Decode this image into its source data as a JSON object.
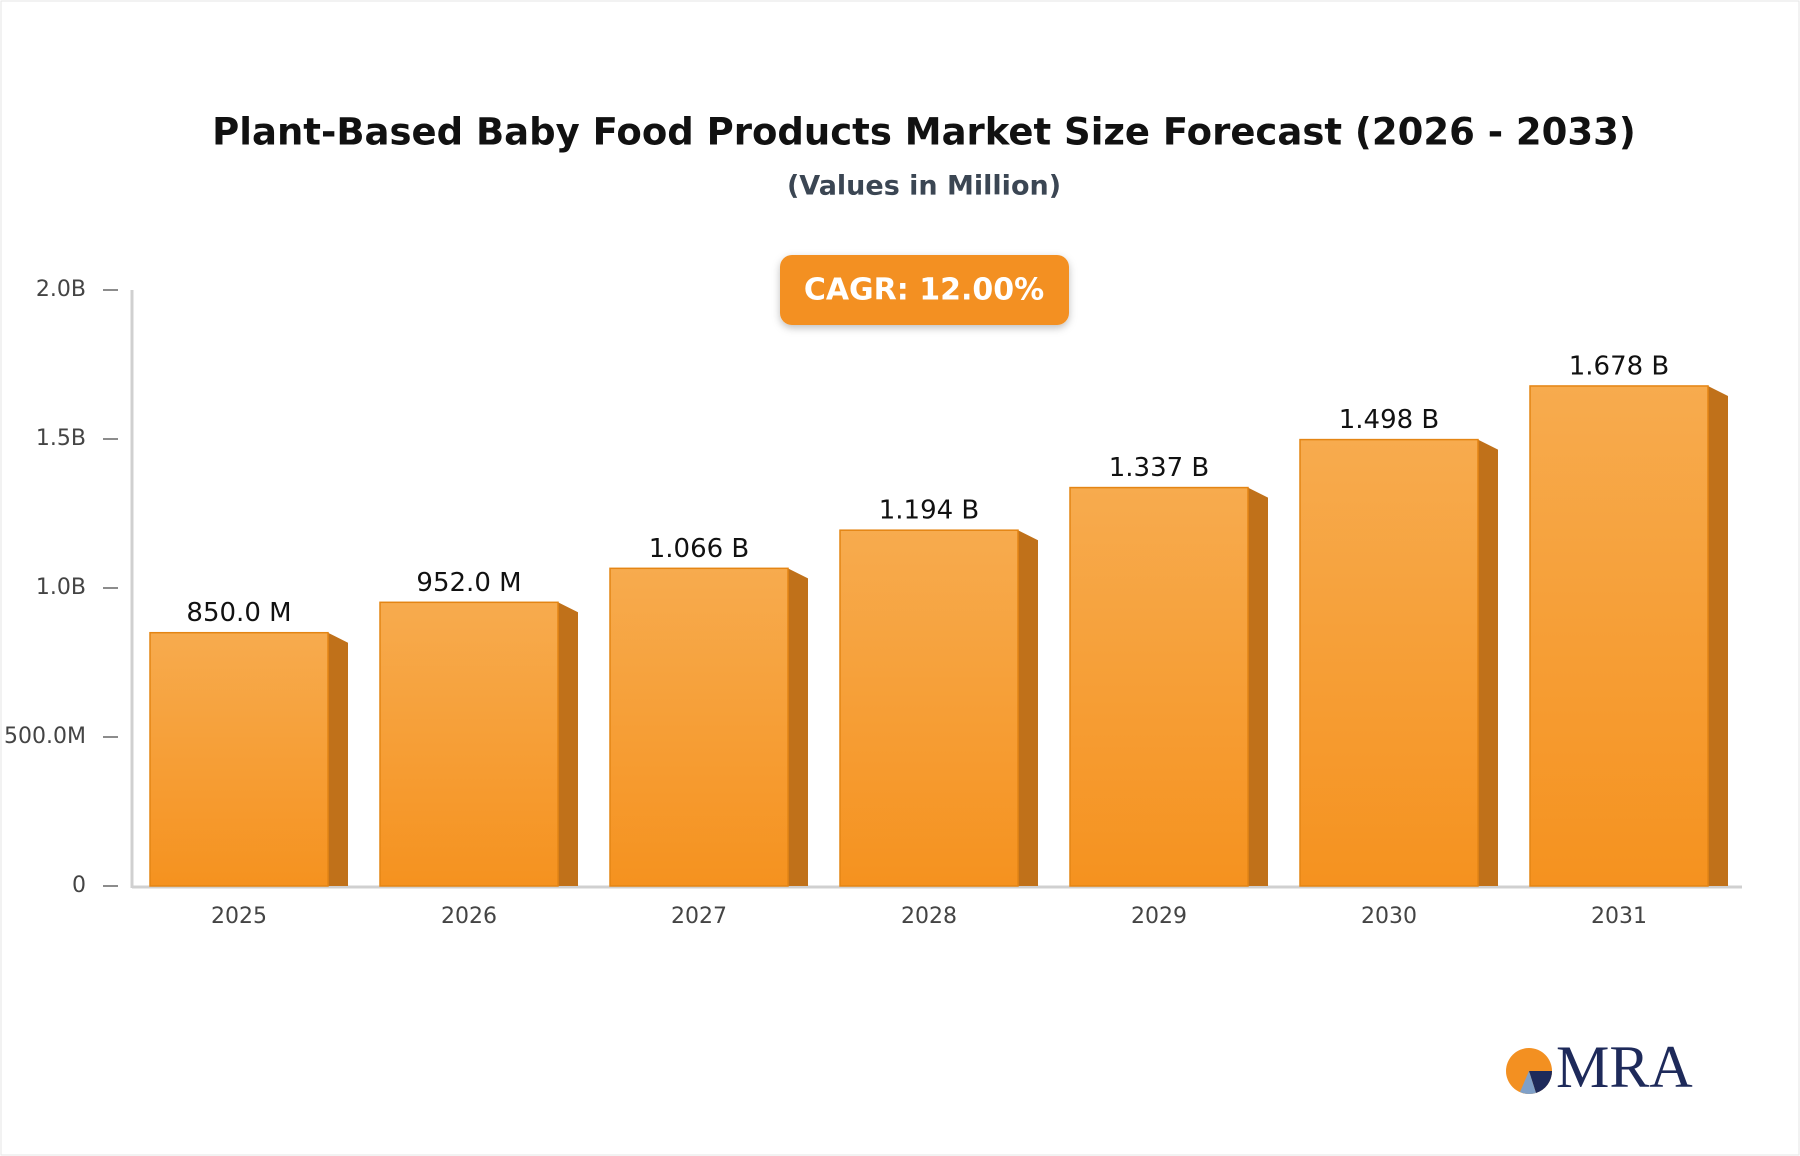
{
  "chart_data": {
    "type": "bar",
    "title": "Plant-Based Baby Food Products Market Size Forecast (2026 - 2033)",
    "subtitle": "(Values in Million)",
    "annotation": "CAGR: 12.00%",
    "logo_text": "MRA",
    "categories": [
      "2025",
      "2026",
      "2027",
      "2028",
      "2029",
      "2030",
      "2031"
    ],
    "values": [
      850,
      952,
      1066,
      1194,
      1337,
      1498,
      1678
    ],
    "value_labels": [
      "850.0 M",
      "952.0 M",
      "1.066 B",
      "1.194 B",
      "1.337 B",
      "1.498 B",
      "1.678 B"
    ],
    "color": "#f59a2e",
    "ylim": [
      0,
      2000
    ],
    "yticks": [
      0,
      {
        "value": 500,
        "label": "500.0M"
      },
      {
        "value": 1000,
        "label": "1.0B"
      },
      {
        "value": 1500,
        "label": "1.5B"
      },
      {
        "value": 2000,
        "label": "2.0B"
      }
    ],
    "grid": false
  }
}
